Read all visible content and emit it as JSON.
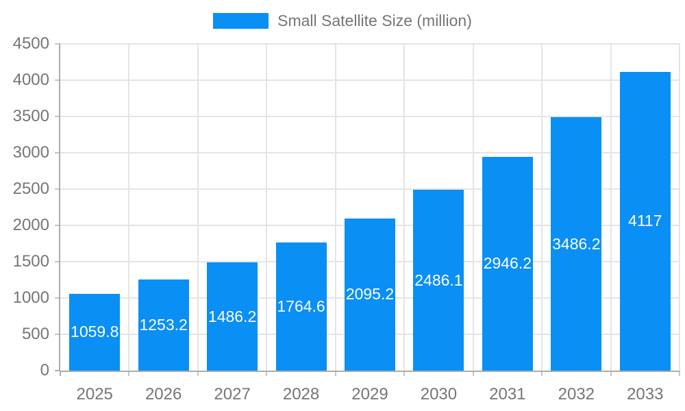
{
  "legend": {
    "label": "Small Satellite Size (million)"
  },
  "chart_data": {
    "type": "bar",
    "title": "Small Satellite Size (million)",
    "categories": [
      "2025",
      "2026",
      "2027",
      "2028",
      "2029",
      "2030",
      "2031",
      "2032",
      "2033"
    ],
    "values": [
      1059.8,
      1253.2,
      1486.2,
      1764.6,
      2095.2,
      2486.1,
      2946.2,
      3486.2,
      4117
    ],
    "value_labels": [
      "1059.8",
      "1253.2",
      "1486.2",
      "1764.6",
      "2095.2",
      "2486.1",
      "2946.2",
      "3486.2",
      "4117"
    ],
    "xlabel": "",
    "ylabel": "",
    "ylim": [
      0,
      4500
    ],
    "yticks": [
      0,
      500,
      1000,
      1500,
      2000,
      2500,
      3000,
      3500,
      4000,
      4500
    ],
    "ytick_labels": [
      "0",
      "500",
      "1000",
      "1500",
      "2000",
      "2500",
      "3000",
      "3500",
      "4000",
      "4500"
    ],
    "grid": true,
    "legend_position": "top",
    "colors": {
      "bar": "#0a8ff4",
      "grid": "#e4e4e4",
      "axis": "#ababab",
      "tick": "#c4c4c4",
      "tick_label": "#757575",
      "value_label": "#ffffff",
      "background": "#ffffff"
    }
  }
}
